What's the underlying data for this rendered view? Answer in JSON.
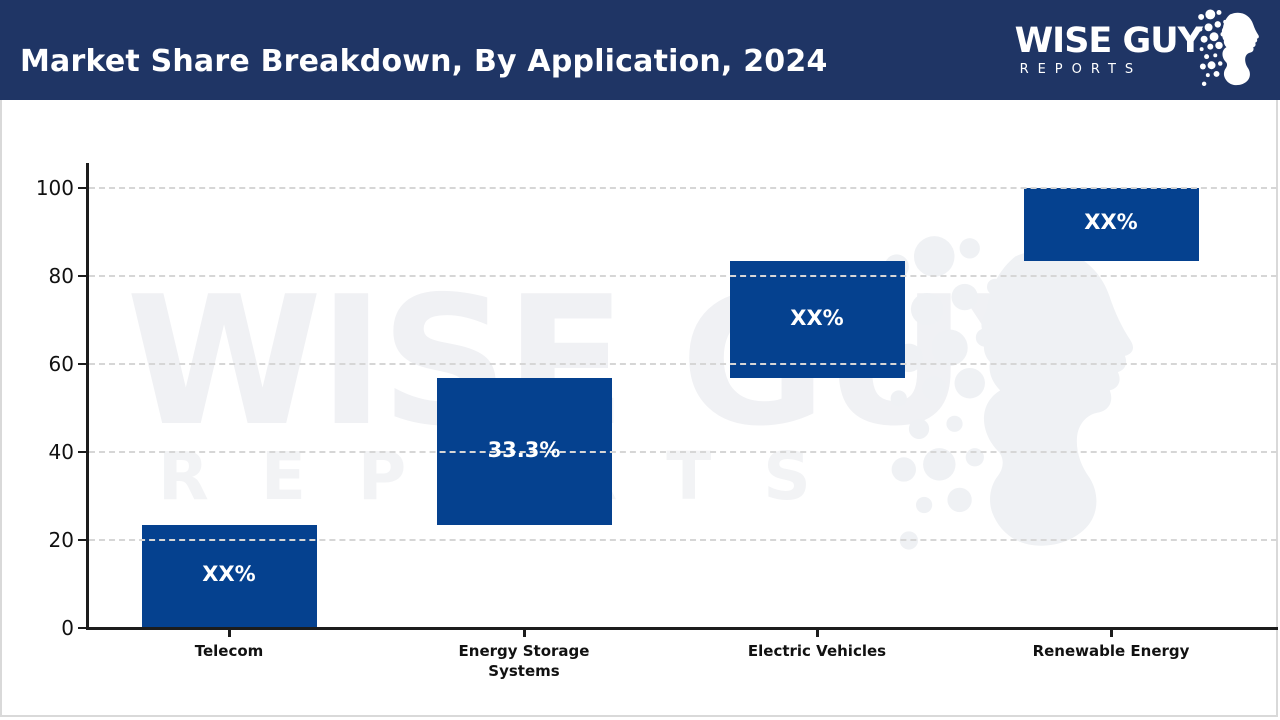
{
  "header": {
    "title": "Market Share Breakdown, By Application, 2024",
    "bg_color": "#1f3565",
    "logo": {
      "line1": "WISE GUY",
      "line2": "REPORTS"
    }
  },
  "watermark": {
    "line1": "WISE GUY",
    "line2": "REPORTS"
  },
  "chart_data": {
    "type": "bar",
    "variant": "floating-waterfall",
    "title": "Market Share Breakdown, By Application, 2024",
    "categories": [
      "Telecom",
      "Energy Storage\nSystems",
      "Electric Vehicles",
      "Renewable Energy"
    ],
    "segments": [
      {
        "category": "Telecom",
        "start": 0,
        "end": 23.3,
        "value_label": "XX%"
      },
      {
        "category": "Energy Storage Systems",
        "start": 23.3,
        "end": 56.6,
        "value_label": "33.3%"
      },
      {
        "category": "Electric Vehicles",
        "start": 56.6,
        "end": 83.3,
        "value_label": "XX%"
      },
      {
        "category": "Renewable Energy",
        "start": 83.3,
        "end": 100,
        "value_label": "XX%"
      }
    ],
    "yticks": [
      0,
      20,
      40,
      60,
      80,
      100
    ],
    "ylim": [
      0,
      105.5
    ],
    "xlabel": "",
    "ylabel": "",
    "legend": "none",
    "grid": {
      "horizontal": true,
      "style": "dashed",
      "color": "#d6d6d6",
      "drawn_above_bars": true
    },
    "bar_color": "#05418f",
    "bar_label_color": "#ffffff"
  }
}
